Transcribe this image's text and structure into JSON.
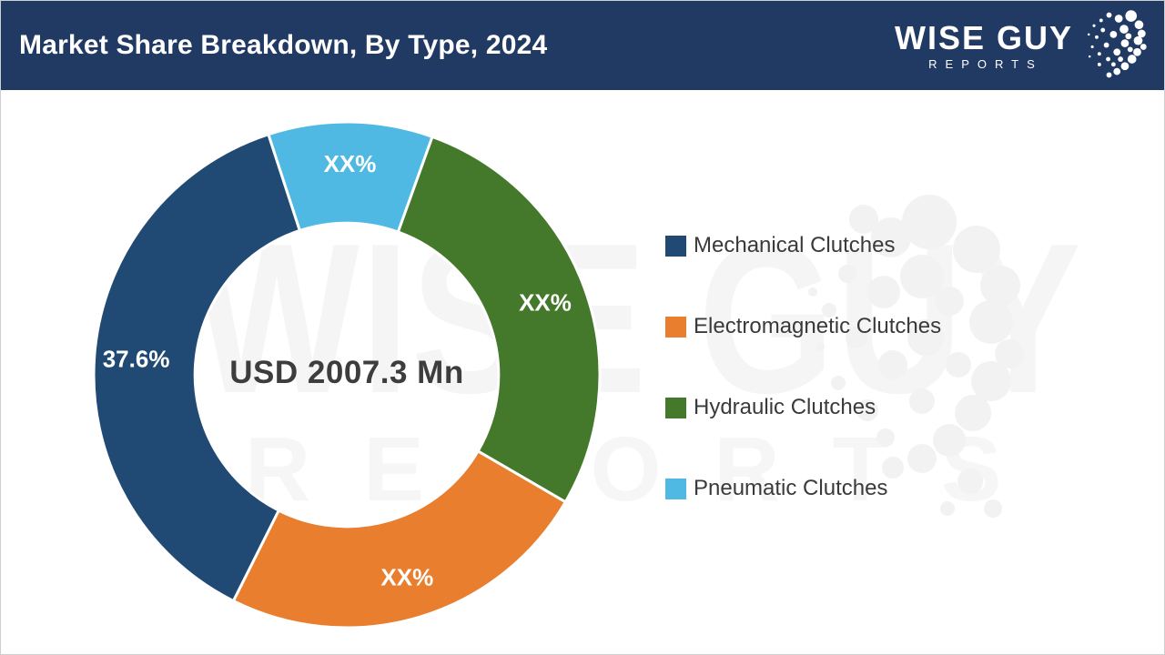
{
  "header": {
    "title": "Market Share Breakdown, By Type, 2024",
    "bg_color": "#213a64",
    "logo": {
      "wordmark": "WISE GUY",
      "subtitle": "REPORTS"
    }
  },
  "watermark": {
    "line1": "WISE GUY",
    "line2": "REPORTS"
  },
  "chart_data": {
    "type": "pie",
    "subtype": "donut",
    "title": "Market Share Breakdown, By Type, 2024",
    "center_label": "USD 2007.3 Mn",
    "units": "USD Mn",
    "rotation": "clockwise",
    "start_angle_deg": 206.6,
    "inner_radius_ratio": 0.6,
    "legend_position": "right",
    "segments": [
      {
        "name": "Mechanical Clutches",
        "value_pct": 37.6,
        "display_label": "37.6%",
        "color": "#204a73"
      },
      {
        "name": "Pneumatic Clutches",
        "value_pct": 10.5,
        "display_label": "XX%",
        "color": "#4fb9e3"
      },
      {
        "name": "Hydraulic Clutches",
        "value_pct": 27.9,
        "display_label": "XX%",
        "color": "#44782a"
      },
      {
        "name": "Electromagnetic Clutches",
        "value_pct": 24.0,
        "display_label": "XX%",
        "color": "#e87e2e"
      }
    ]
  },
  "legend": {
    "items": [
      {
        "label": "Mechanical Clutches",
        "color": "#204a73"
      },
      {
        "label": "Electromagnetic Clutches",
        "color": "#e87e2e"
      },
      {
        "label": "Hydraulic Clutches",
        "color": "#44782a"
      },
      {
        "label": "Pneumatic Clutches",
        "color": "#4fb9e3"
      }
    ]
  }
}
